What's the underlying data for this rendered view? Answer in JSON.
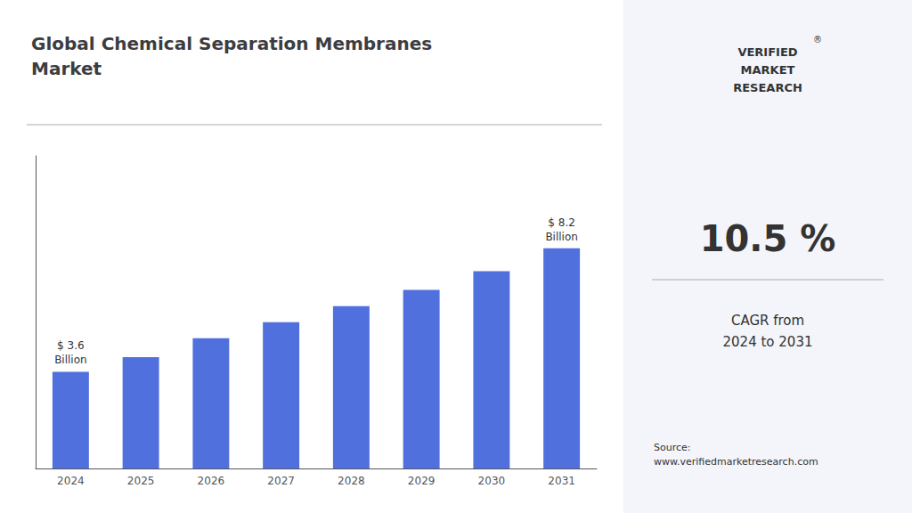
{
  "chart_data": {
    "type": "bar",
    "title": "Global Chemical Separation Membranes\nMarket",
    "categories": [
      "2024",
      "2025",
      "2026",
      "2027",
      "2028",
      "2029",
      "2030",
      "2031"
    ],
    "values": [
      3.6,
      4.15,
      4.85,
      5.45,
      6.05,
      6.65,
      7.35,
      8.2
    ],
    "ylim": [
      0,
      11.644
    ],
    "yticks": [],
    "tick_labels": "x",
    "grid": false,
    "annotations": [
      {
        "text": "$ 3.6\nBillion",
        "category": "2024"
      },
      {
        "text": "$ 8.2\nBillion",
        "category": "2031"
      },
      {
        "text": "VERIFIED\nMARKET\nRESEARCH"
      },
      {
        "text": "®"
      },
      {
        "text": "10.5 %"
      },
      {
        "text": "CAGR from\n2024 to 2031"
      },
      {
        "text": "Source:\nwww.verifiedmarketresearch.com"
      }
    ]
  }
}
